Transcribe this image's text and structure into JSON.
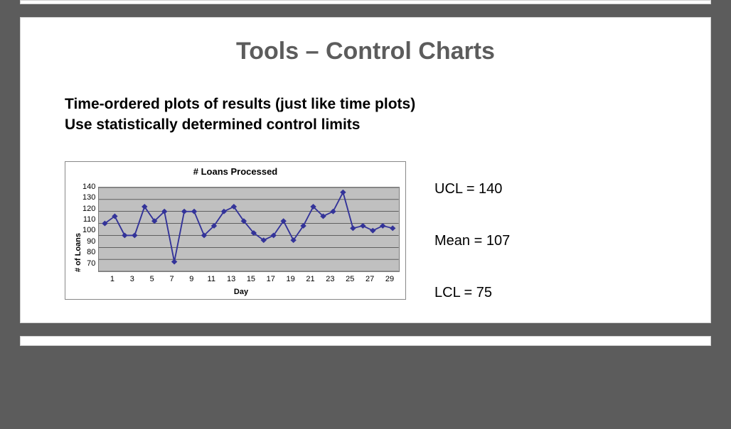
{
  "title": "Tools – Control Charts",
  "subtitle_line1": "Time-ordered plots of results (just like time plots)",
  "subtitle_line2": "Use statistically determined control limits",
  "stats": {
    "ucl": "UCL = 140",
    "mean": "Mean = 107",
    "lcl": "LCL = 75"
  },
  "chart": {
    "type": "line",
    "title": "# Loans Processed",
    "xlabel": "Day",
    "ylabel": "# of Loans",
    "ylim": [
      70,
      140
    ],
    "ytick_step": 10,
    "yticks": [
      "140",
      "130",
      "120",
      "110",
      "100",
      "90",
      "80",
      "70"
    ],
    "xticks": [
      "1",
      "3",
      "5",
      "7",
      "9",
      "11",
      "13",
      "15",
      "17",
      "19",
      "21",
      "23",
      "25",
      "27",
      "29"
    ],
    "x_count": 30,
    "line_color": "#333399",
    "marker_color": "#333399",
    "gridline_color": "#000000",
    "plot_bg": "#c0c0c0",
    "plot_border": "#7a7a7a",
    "line_width": 1.8,
    "marker_style": "diamond",
    "marker_size": 4,
    "title_fontsize": 13,
    "label_fontsize": 11,
    "tick_fontsize": 11,
    "values": [
      110,
      116,
      100,
      100,
      124,
      112,
      120,
      78,
      120,
      120,
      100,
      108,
      120,
      124,
      112,
      102,
      96,
      100,
      112,
      96,
      108,
      124,
      116,
      120,
      136,
      106,
      108,
      104,
      108,
      106
    ]
  }
}
